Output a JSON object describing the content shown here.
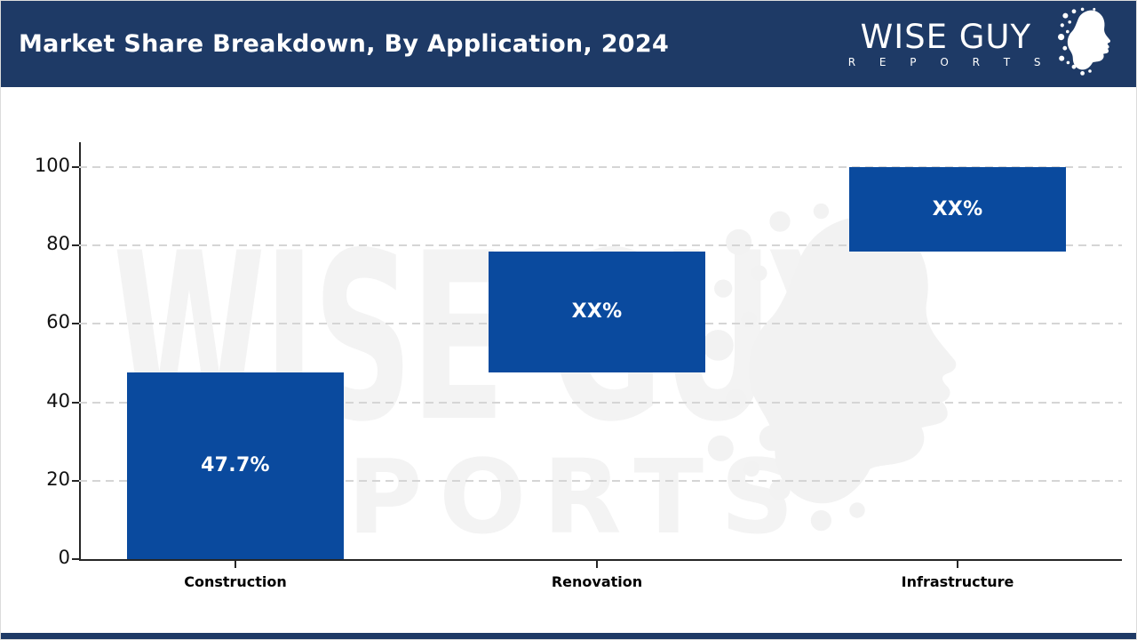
{
  "header": {
    "title": "Market Share Breakdown, By Application, 2024",
    "brand": {
      "line1": "WISE GUY",
      "line2": "R E P O R T S"
    }
  },
  "watermark": {
    "line1": "WISE GUY",
    "line2": "REPORTS"
  },
  "colors": {
    "header_bg": "#1e3a66",
    "footer_bg": "#1e3a66",
    "bar": "#0a4a9e",
    "grid": "#d5d5d5",
    "axis": "#262626",
    "bar_label_text": "#ffffff",
    "watermark": "#f3f3f3"
  },
  "chart_data": {
    "type": "bar",
    "subtype": "waterfall",
    "title": "Market Share Breakdown, By Application, 2024",
    "categories": [
      "Construction",
      "Renovation",
      "Infrastructure"
    ],
    "segments": [
      {
        "category": "Construction",
        "start": 0,
        "end": 47.7,
        "label": "47.7%"
      },
      {
        "category": "Renovation",
        "start": 47.7,
        "end": 78.5,
        "label": "XX%"
      },
      {
        "category": "Infrastructure",
        "start": 78.5,
        "end": 100,
        "label": "XX%"
      }
    ],
    "values": [
      47.7,
      30.8,
      21.5
    ],
    "bar_labels": [
      "47.7%",
      "XX%",
      "XX%"
    ],
    "xlabel": "",
    "ylabel": "",
    "ylim": [
      0,
      105
    ],
    "yticks": [
      0,
      20,
      40,
      60,
      80,
      100
    ],
    "grid": "dashed-horizontal",
    "legend": false
  }
}
